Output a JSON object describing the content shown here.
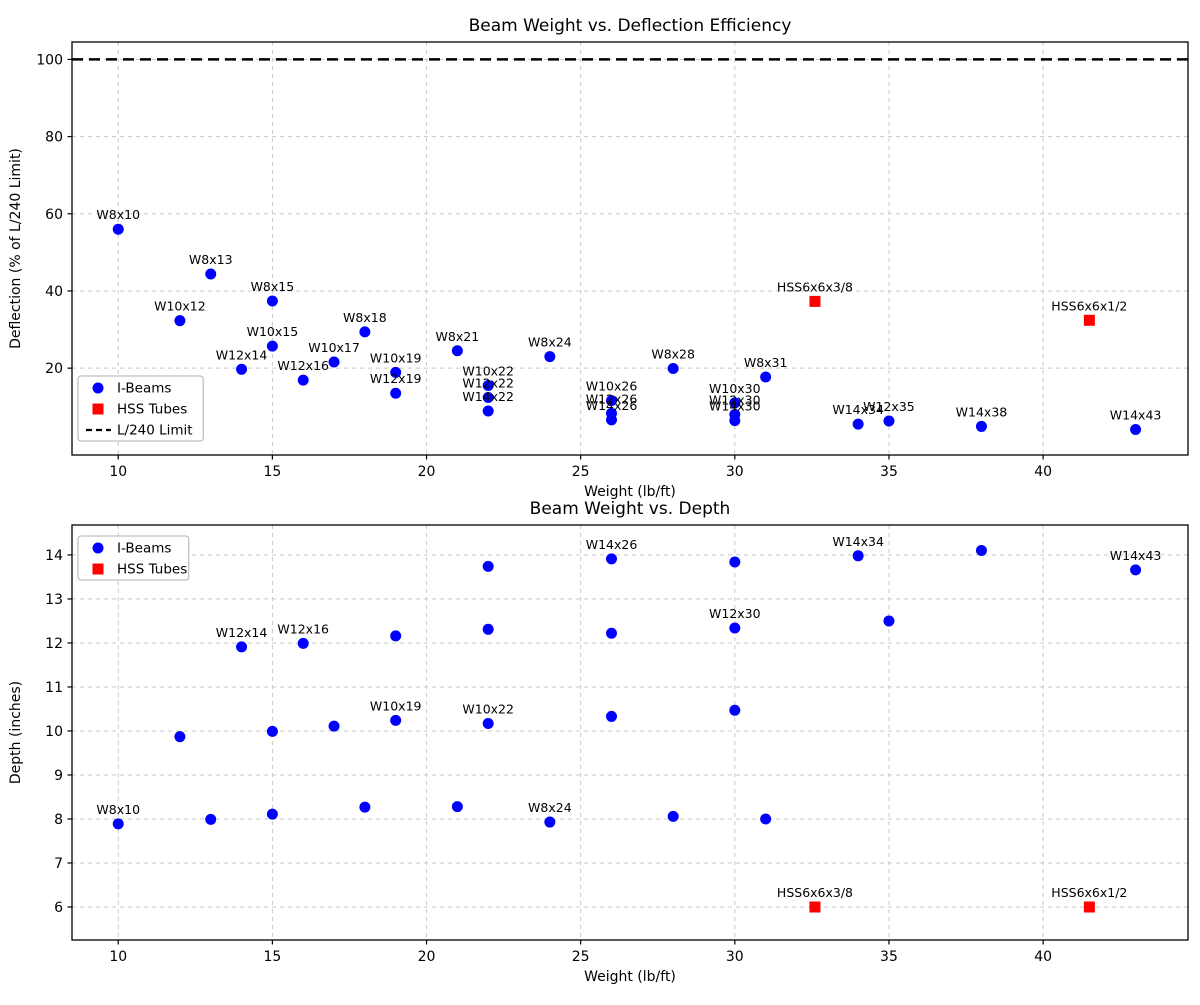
{
  "colors": {
    "ibeam": "#0000ff",
    "hss": "#ff0000",
    "limit_line": "#000000",
    "grid": "#c8c8c8",
    "background": "#ffffff",
    "legend_border": "#b0b0b0"
  },
  "chart_data": [
    {
      "type": "scatter",
      "title": "Beam Weight vs. Deflection Efficiency",
      "xlabel": "Weight (lb/ft)",
      "ylabel": "Deflection (% of L/240 Limit)",
      "xlim": [
        8.5,
        44.7
      ],
      "ylim": [
        -2.5,
        104.5
      ],
      "xticks": [
        10,
        15,
        20,
        25,
        30,
        35,
        40
      ],
      "yticks": [
        20,
        40,
        60,
        80,
        100
      ],
      "grid": true,
      "legend_position": "lower-left",
      "limit_line": {
        "y": 100,
        "label": "L/240 Limit"
      },
      "series": [
        {
          "name": "I-Beams",
          "marker": "circle",
          "color": "#0000ff",
          "points": [
            {
              "label": "W8x10",
              "x": 10,
              "y": 56.0,
              "annotate": true
            },
            {
              "label": "W10x12",
              "x": 12,
              "y": 32.3,
              "annotate": true
            },
            {
              "label": "W8x13",
              "x": 13,
              "y": 44.4,
              "annotate": true
            },
            {
              "label": "W12x14",
              "x": 14,
              "y": 19.7,
              "annotate": true
            },
            {
              "label": "W8x15",
              "x": 15,
              "y": 37.4,
              "annotate": true
            },
            {
              "label": "W10x15",
              "x": 15,
              "y": 25.7,
              "annotate": true
            },
            {
              "label": "W12x16",
              "x": 16,
              "y": 16.9,
              "annotate": true
            },
            {
              "label": "W10x17",
              "x": 17,
              "y": 21.6,
              "annotate": true
            },
            {
              "label": "W8x18",
              "x": 18,
              "y": 29.4,
              "annotate": true
            },
            {
              "label": "W10x19",
              "x": 19,
              "y": 18.9,
              "annotate": true
            },
            {
              "label": "W12x19",
              "x": 19,
              "y": 13.5,
              "annotate": true
            },
            {
              "label": "W8x21",
              "x": 21,
              "y": 24.5,
              "annotate": true
            },
            {
              "label": "W10x22",
              "x": 22,
              "y": 15.5,
              "annotate": true
            },
            {
              "label": "W12x22",
              "x": 22,
              "y": 12.4,
              "annotate": true
            },
            {
              "label": "W14x22",
              "x": 22,
              "y": 8.9,
              "annotate": true
            },
            {
              "label": "W8x24",
              "x": 24,
              "y": 23.0,
              "annotate": true
            },
            {
              "label": "W10x26",
              "x": 26,
              "y": 11.6,
              "annotate": true
            },
            {
              "label": "W12x26",
              "x": 26,
              "y": 8.3,
              "annotate": true
            },
            {
              "label": "W14x26",
              "x": 26,
              "y": 6.6,
              "annotate": true
            },
            {
              "label": "W8x28",
              "x": 28,
              "y": 19.9,
              "annotate": true
            },
            {
              "label": "W10x30",
              "x": 30,
              "y": 11.0,
              "annotate": true
            },
            {
              "label": "W12x30",
              "x": 30,
              "y": 8.0,
              "annotate": true
            },
            {
              "label": "W14x30",
              "x": 30,
              "y": 6.4,
              "annotate": true
            },
            {
              "label": "W8x31",
              "x": 31,
              "y": 17.7,
              "annotate": true
            },
            {
              "label": "W14x34",
              "x": 34,
              "y": 5.5,
              "annotate": true
            },
            {
              "label": "W12x35",
              "x": 35,
              "y": 6.3,
              "annotate": true
            },
            {
              "label": "W14x38",
              "x": 38,
              "y": 4.9,
              "annotate": true
            },
            {
              "label": "W14x43",
              "x": 43,
              "y": 4.1,
              "annotate": true
            }
          ]
        },
        {
          "name": "HSS Tubes",
          "marker": "square",
          "color": "#ff0000",
          "points": [
            {
              "label": "HSS6x6x3/8",
              "x": 32.6,
              "y": 37.3,
              "annotate": true
            },
            {
              "label": "HSS6x6x1/2",
              "x": 41.5,
              "y": 32.4,
              "annotate": true
            }
          ]
        }
      ]
    },
    {
      "type": "scatter",
      "title": "Beam Weight vs. Depth",
      "xlabel": "Weight (lb/ft)",
      "ylabel": "Depth (inches)",
      "xlim": [
        8.5,
        44.7
      ],
      "ylim": [
        5.25,
        14.68
      ],
      "xticks": [
        10,
        15,
        20,
        25,
        30,
        35,
        40
      ],
      "yticks": [
        6,
        7,
        8,
        9,
        10,
        11,
        12,
        13,
        14
      ],
      "grid": true,
      "legend_position": "upper-left",
      "limit_line": null,
      "series": [
        {
          "name": "I-Beams",
          "marker": "circle",
          "color": "#0000ff",
          "points": [
            {
              "label": "W8x10",
              "x": 10,
              "y": 7.89,
              "annotate": true
            },
            {
              "label": "W10x12",
              "x": 12,
              "y": 9.87,
              "annotate": false
            },
            {
              "label": "W8x13",
              "x": 13,
              "y": 7.99,
              "annotate": false
            },
            {
              "label": "W12x14",
              "x": 14,
              "y": 11.91,
              "annotate": true
            },
            {
              "label": "W8x15",
              "x": 15,
              "y": 8.11,
              "annotate": false
            },
            {
              "label": "W10x15",
              "x": 15,
              "y": 9.99,
              "annotate": false
            },
            {
              "label": "W12x16",
              "x": 16,
              "y": 11.99,
              "annotate": true
            },
            {
              "label": "W10x17",
              "x": 17,
              "y": 10.11,
              "annotate": false
            },
            {
              "label": "W8x18",
              "x": 18,
              "y": 8.27,
              "annotate": false
            },
            {
              "label": "W10x19",
              "x": 19,
              "y": 10.24,
              "annotate": true
            },
            {
              "label": "W12x19",
              "x": 19,
              "y": 12.16,
              "annotate": false
            },
            {
              "label": "W8x21",
              "x": 21,
              "y": 8.28,
              "annotate": false
            },
            {
              "label": "W10x22",
              "x": 22,
              "y": 10.17,
              "annotate": true
            },
            {
              "label": "W12x22",
              "x": 22,
              "y": 12.31,
              "annotate": false
            },
            {
              "label": "W14x22",
              "x": 22,
              "y": 13.74,
              "annotate": false
            },
            {
              "label": "W8x24",
              "x": 24,
              "y": 7.93,
              "annotate": true
            },
            {
              "label": "W10x26",
              "x": 26,
              "y": 10.33,
              "annotate": false
            },
            {
              "label": "W12x26",
              "x": 26,
              "y": 12.22,
              "annotate": false
            },
            {
              "label": "W14x26",
              "x": 26,
              "y": 13.91,
              "annotate": true
            },
            {
              "label": "W8x28",
              "x": 28,
              "y": 8.06,
              "annotate": false
            },
            {
              "label": "W10x30",
              "x": 30,
              "y": 10.47,
              "annotate": false
            },
            {
              "label": "W12x30",
              "x": 30,
              "y": 12.34,
              "annotate": true
            },
            {
              "label": "W14x30",
              "x": 30,
              "y": 13.84,
              "annotate": false
            },
            {
              "label": "W8x31",
              "x": 31,
              "y": 8.0,
              "annotate": false
            },
            {
              "label": "W14x34",
              "x": 34,
              "y": 13.98,
              "annotate": true
            },
            {
              "label": "W12x35",
              "x": 35,
              "y": 12.5,
              "annotate": false
            },
            {
              "label": "W14x38",
              "x": 38,
              "y": 14.1,
              "annotate": false
            },
            {
              "label": "W14x43",
              "x": 43,
              "y": 13.66,
              "annotate": true
            }
          ]
        },
        {
          "name": "HSS Tubes",
          "marker": "square",
          "color": "#ff0000",
          "points": [
            {
              "label": "HSS6x6x3/8",
              "x": 32.6,
              "y": 6.0,
              "annotate": true
            },
            {
              "label": "HSS6x6x1/2",
              "x": 41.5,
              "y": 6.0,
              "annotate": true
            }
          ]
        }
      ]
    }
  ]
}
